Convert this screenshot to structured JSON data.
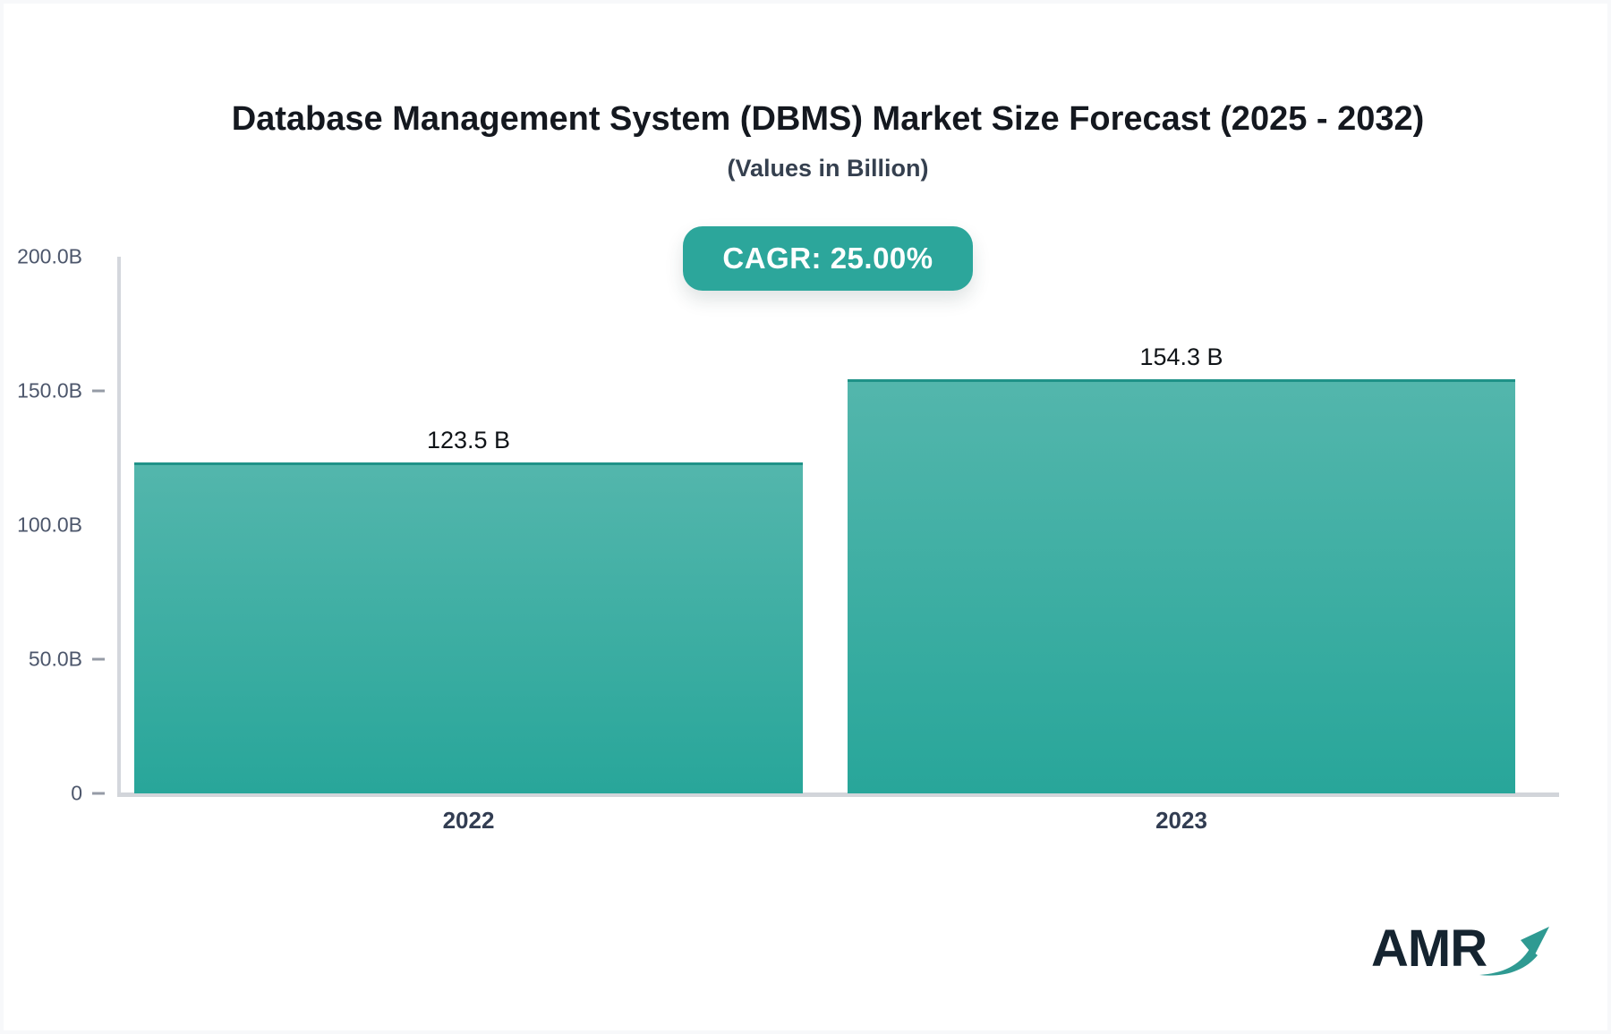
{
  "chart": {
    "title": "Database Management System (DBMS) Market Size Forecast (2025 - 2032)",
    "subtitle": "(Values in Billion)",
    "cagr_label": "CAGR: 25.00%"
  },
  "chart_data": {
    "type": "bar",
    "title": "Database Management System (DBMS) Market Size Forecast (2025 - 2032)",
    "subtitle": "(Values in Billion)",
    "cagr": "25.00%",
    "categories": [
      "2022",
      "2023"
    ],
    "values": [
      123.5,
      154.3
    ],
    "value_labels": [
      "123.5 B",
      "154.3 B"
    ],
    "unit": "Billion",
    "ylim": [
      0,
      200
    ],
    "yticks": [
      "200.0B",
      "150.0B",
      "100.0B",
      "50.0B",
      "0"
    ],
    "grid": false,
    "legend": false,
    "colors": {
      "bar_top": "#53b6ac",
      "bar_bottom": "#28a69a",
      "bar_edge": "#1f9288",
      "badge": "#2ca69b",
      "axis": "#d3d6dc"
    }
  },
  "branding": {
    "logo_text": "AMR"
  }
}
